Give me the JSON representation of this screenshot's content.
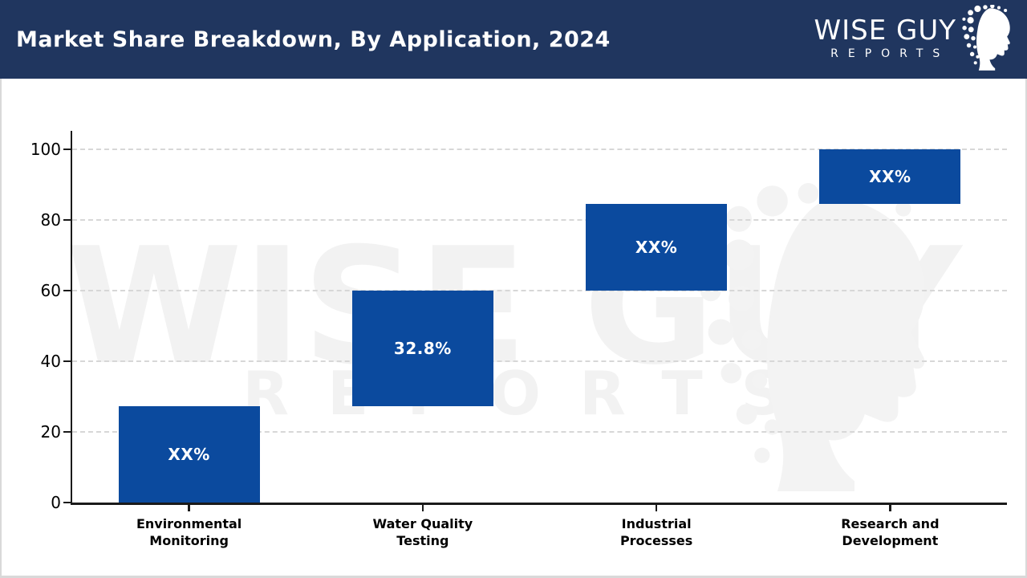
{
  "header": {
    "title": "Market Share Breakdown, By Application, 2024",
    "logo": {
      "line1": "WISE GUY",
      "line2": "REPORTS"
    }
  },
  "watermark": {
    "line1": "WISE GUY",
    "line2": "REPORTS"
  },
  "colors": {
    "header_background": "#20365f",
    "bar_blue": "#0b4a9e",
    "axis": "#1a1a1a",
    "gridline": "#d7d7d7",
    "watermark": "#f2f2f2"
  },
  "chart_data": {
    "type": "bar",
    "subtype": "waterfall-floating-bars",
    "title": "Market Share Breakdown, By Application, 2024",
    "xlabel": "",
    "ylabel": "",
    "ylim": [
      0,
      105
    ],
    "yticks": [
      0,
      20,
      40,
      60,
      80,
      100
    ],
    "grid": true,
    "legend": "none",
    "bar_color": "#0b4a9e",
    "categories": [
      "Environmental Monitoring",
      "Water Quality Testing",
      "Industrial Processes",
      "Research and Development"
    ],
    "bars": [
      {
        "category_lines": [
          "Environmental",
          "Monitoring"
        ],
        "label": "XX%",
        "start": 0,
        "end": 27.2,
        "size": 27.2
      },
      {
        "category_lines": [
          "Water Quality",
          "Testing"
        ],
        "label": "32.8%",
        "start": 27.2,
        "end": 60,
        "size": 32.8
      },
      {
        "category_lines": [
          "Industrial",
          "Processes"
        ],
        "label": "XX%",
        "start": 60,
        "end": 84.6,
        "size": 24.6
      },
      {
        "category_lines": [
          "Research and",
          "Development"
        ],
        "label": "XX%",
        "start": 84.6,
        "end": 100,
        "size": 15.4
      }
    ]
  }
}
